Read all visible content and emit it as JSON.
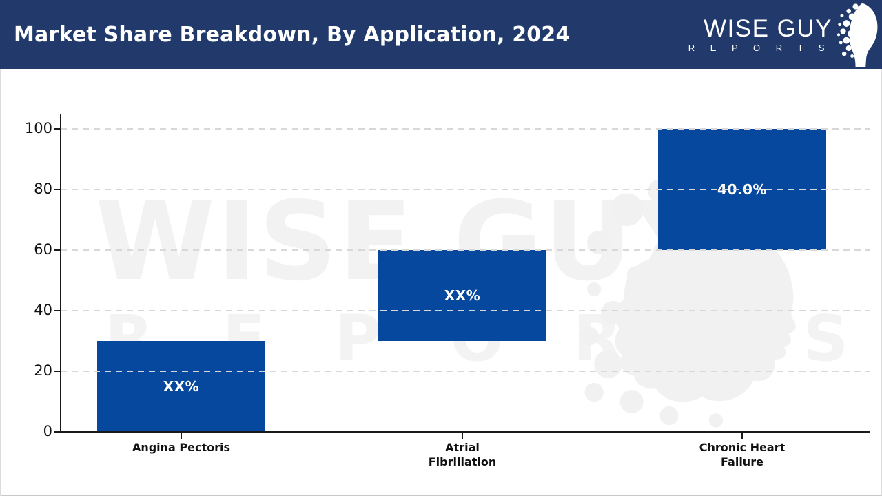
{
  "header": {
    "title": "Market Share Breakdown, By Application, 2024",
    "logo": {
      "name": "WISE GUY",
      "tagline": "R E P O R T S"
    }
  },
  "watermark": {
    "line1": "WISE GUY",
    "line2": "R E P O R T S"
  },
  "chart_data": {
    "type": "bar",
    "subtype": "floating-segment-bars",
    "title": "Market Share Breakdown, By Application, 2024",
    "categories": [
      "Angina Pectoris",
      "Atrial Fibrillation",
      "Chronic Heart Failure"
    ],
    "xtick_labels": [
      "Angina Pectoris",
      "Atrial\nFibrillation",
      "Chronic Heart\nFailure"
    ],
    "segments": [
      {
        "category": "Angina Pectoris",
        "start": 0,
        "end": 30,
        "label": "XX%"
      },
      {
        "category": "Atrial Fibrillation",
        "start": 30,
        "end": 60,
        "label": "XX%"
      },
      {
        "category": "Chronic Heart Failure",
        "start": 60,
        "end": 100,
        "label": "40.0%"
      }
    ],
    "yticks": [
      0,
      20,
      40,
      60,
      80,
      100
    ],
    "ylim": [
      0,
      100
    ],
    "xlabel": "",
    "ylabel": "",
    "legend": "none",
    "grid": {
      "axis": "y",
      "style": "dashed",
      "over_bars": true
    },
    "colors": {
      "bar": "#05489e",
      "bar_label_text": "#ffffff",
      "axis": "#1a1a1a",
      "gridline": "#d8d8d8",
      "header_bg": "#213a6b",
      "watermark": "#f2f2f2"
    }
  }
}
